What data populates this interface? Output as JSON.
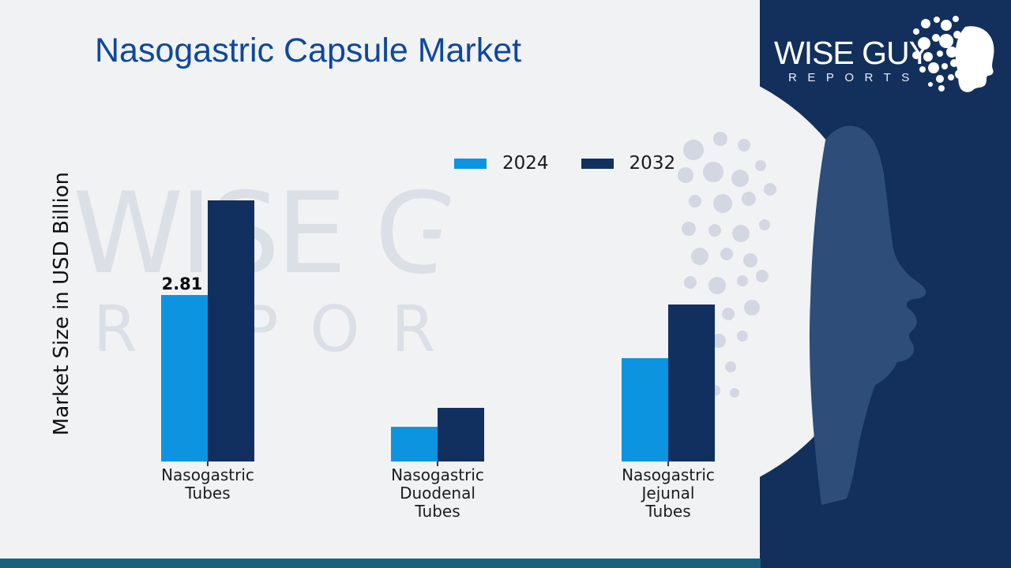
{
  "page": {
    "title": "Nasogastric Capsule Market"
  },
  "logo": {
    "line1": "WISE GUY",
    "line2": "REPORTS"
  },
  "watermark": {
    "line1": "WISE GUY",
    "line2": "REPORTS"
  },
  "colors": {
    "background": "#f1f2f4",
    "title_blue": "#0e479e",
    "series_2024": "#0d94e0",
    "series_2032": "#12305f",
    "panel_navy": "#13305c",
    "face_navy": "#2e4d79",
    "footer_teal": "#19607e",
    "watermark_gray": "#dbdfe6"
  },
  "chart_data": {
    "type": "bar",
    "title": "Nasogastric Capsule Market",
    "xlabel": "",
    "ylabel": "Market Size in USD Billion",
    "categories": [
      "Nasogastric\nTubes",
      "Nasogastric\nDuodenal\nTubes",
      "Nasogastric\nJejunal\nTubes"
    ],
    "series": [
      {
        "name": "2024",
        "color": "#0d94e0",
        "values": [
          2.81,
          0.59,
          1.74
        ]
      },
      {
        "name": "2032",
        "color": "#12305f",
        "values": [
          4.41,
          0.91,
          2.65
        ]
      }
    ],
    "annotations": [
      {
        "text": "2.81",
        "series": "2024",
        "category_index": 0
      }
    ],
    "legend_position": "top-center",
    "grid": false,
    "ylim": [
      0,
      4.8
    ]
  }
}
